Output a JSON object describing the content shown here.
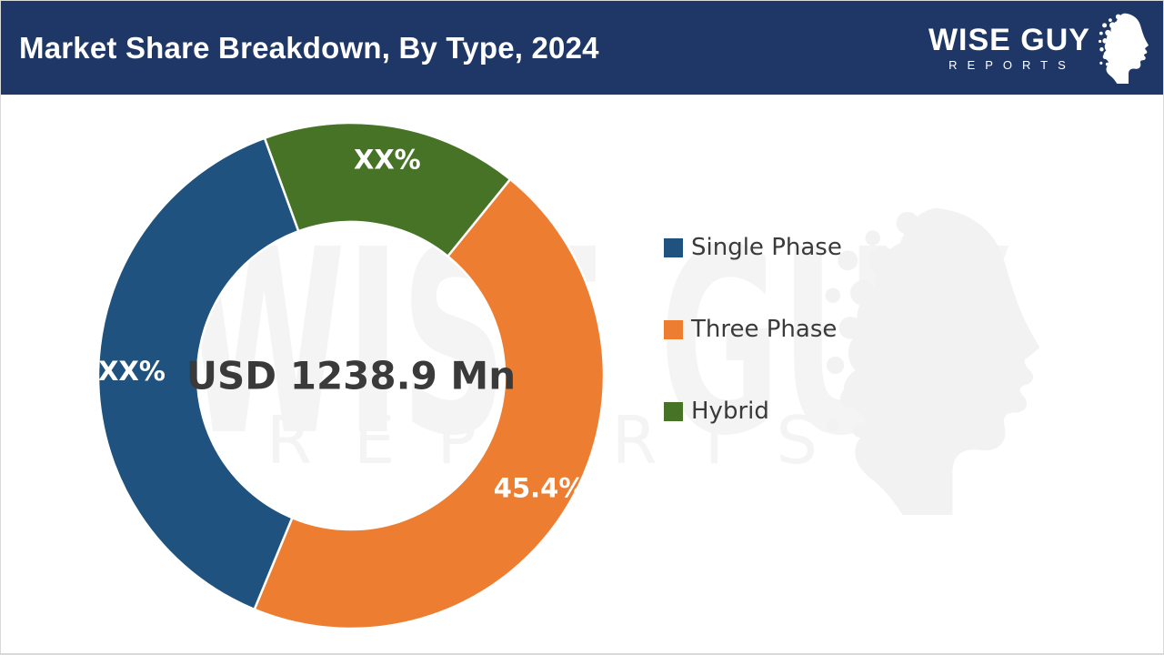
{
  "header": {
    "title": "Market Share Breakdown, By Type, 2024",
    "bg_color": "#1F3766",
    "logo": {
      "wordmark": "WISE GUY",
      "subtitle": "REPORTS"
    }
  },
  "watermark": {
    "wordmark": "WISE GUY",
    "subtitle": "REPORTS"
  },
  "chart_data": {
    "type": "pie",
    "subtype": "donut",
    "title": "Market Share Breakdown, By Type, 2024",
    "center_text": "USD 1238.9 Mn",
    "start_angle_deg": -20,
    "unit": "%",
    "legend_position": "right",
    "slices": [
      {
        "name": "Hybrid",
        "label": "XX%",
        "value_pct": 16.4,
        "color": "#467326"
      },
      {
        "name": "Three Phase",
        "label": "45.4%",
        "value_pct": 45.4,
        "color": "#ED7D31"
      },
      {
        "name": "Single Phase",
        "label": "XX%",
        "value_pct": 38.2,
        "color": "#1F527E"
      }
    ],
    "legend": [
      {
        "name": "Single Phase",
        "color": "#1F527E"
      },
      {
        "name": "Three Phase",
        "color": "#ED7D31"
      },
      {
        "name": "Hybrid",
        "color": "#467326"
      }
    ]
  },
  "colors": {
    "header_bg": "#1F3766",
    "text_dark": "#3A3A3A",
    "watermark": "#F4F4F4",
    "frame_border": "#D9D9D9",
    "slice_gap": "#FFFFFF"
  }
}
